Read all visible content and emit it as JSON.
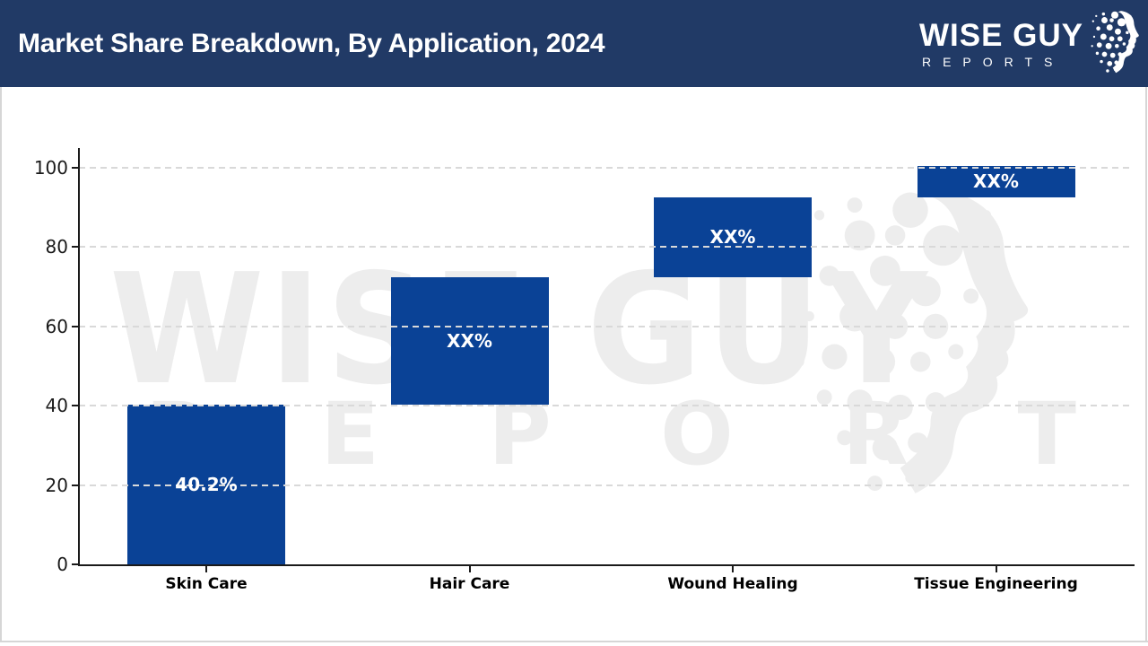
{
  "header": {
    "title": "Market Share Breakdown, By Application, 2024",
    "logo": {
      "wordmark": "WISE GUY",
      "reports": "REPORTS"
    }
  },
  "watermark": {
    "wordmark": "WISE GUY",
    "reports_spaced": "R E P O R T S"
  },
  "colors": {
    "header_bg": "#213a66",
    "title_text": "#ffffff",
    "bar_fill": "#0a4296",
    "bar_label": "#ffffff",
    "grid_line": "#d9d9d9",
    "axis": "#1a1a1a",
    "watermark": "#ededed",
    "page_border": "#d6d6d6"
  },
  "chart_data": {
    "type": "bar",
    "subtype": "waterfall-style stacked market-share progression to 100%",
    "title": "Market Share Breakdown, By Application, 2024",
    "categories": [
      "Skin Care",
      "Hair Care",
      "Wound Healing",
      "Tissue Engineering"
    ],
    "segments": [
      {
        "category": "Skin Care",
        "start": 0,
        "end": 40.2,
        "share": 40.2,
        "label": "40.2%"
      },
      {
        "category": "Hair Care",
        "start": 40.2,
        "end": 72.4,
        "share": 32.2,
        "label": "XX%"
      },
      {
        "category": "Wound Healing",
        "start": 72.4,
        "end": 92.6,
        "share": 20.2,
        "label": "XX%"
      },
      {
        "category": "Tissue Engineering",
        "start": 92.6,
        "end": 100.4,
        "share": 7.8,
        "label": "XX%"
      }
    ],
    "yticks": [
      0,
      20,
      40,
      60,
      80,
      100
    ],
    "ylim": [
      0,
      105
    ],
    "xlabel": "",
    "ylabel": "",
    "grid": "horizontal dashed lines drawn above bars",
    "legend": "none",
    "note": "values masked as XX% except Skin Care 40.2%"
  }
}
